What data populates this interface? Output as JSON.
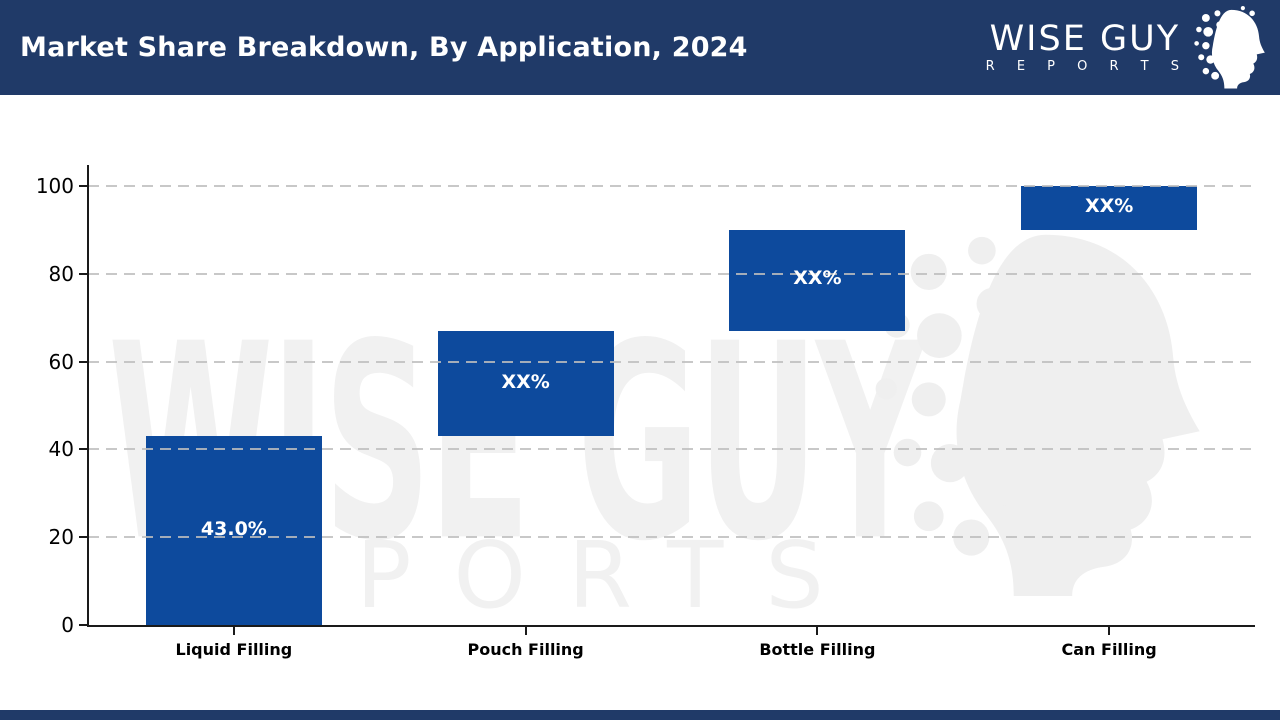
{
  "header": {
    "title": "Market Share Breakdown, By Application, 2024",
    "logo": {
      "line1": "WISE GUY",
      "line2": "R E P O R T S"
    }
  },
  "watermark": {
    "line1": "WISE GUY",
    "line2": "REPORTS"
  },
  "chart_data": {
    "type": "bar",
    "subtype": "waterfall",
    "title": "Market Share Breakdown, By Application, 2024",
    "categories": [
      "Liquid Filling",
      "Pouch Filling",
      "Bottle Filling",
      "Can Filling"
    ],
    "segments": [
      {
        "start": 0,
        "end": 43
      },
      {
        "start": 43,
        "end": 67
      },
      {
        "start": 67,
        "end": 90
      },
      {
        "start": 90,
        "end": 100
      }
    ],
    "values": [
      43,
      24,
      23,
      10
    ],
    "bar_labels": [
      "43.0%",
      "XX%",
      "XX%",
      "XX%"
    ],
    "yticks": [
      0,
      20,
      40,
      60,
      80,
      100
    ],
    "ylim": [
      0,
      104.8
    ],
    "xlabel": "",
    "ylabel": "",
    "grid": "dashed-horizontal",
    "legend": "none",
    "bar_color": "#0d4a9d",
    "bar_label_color": "#ffffff"
  },
  "colors": {
    "header_bg": "#203a68",
    "footer_bg": "#203a68",
    "bar": "#0d4a9d",
    "grid": "#bebebe",
    "watermark": "#f1f1f1",
    "axis": "#1a1a1a"
  }
}
